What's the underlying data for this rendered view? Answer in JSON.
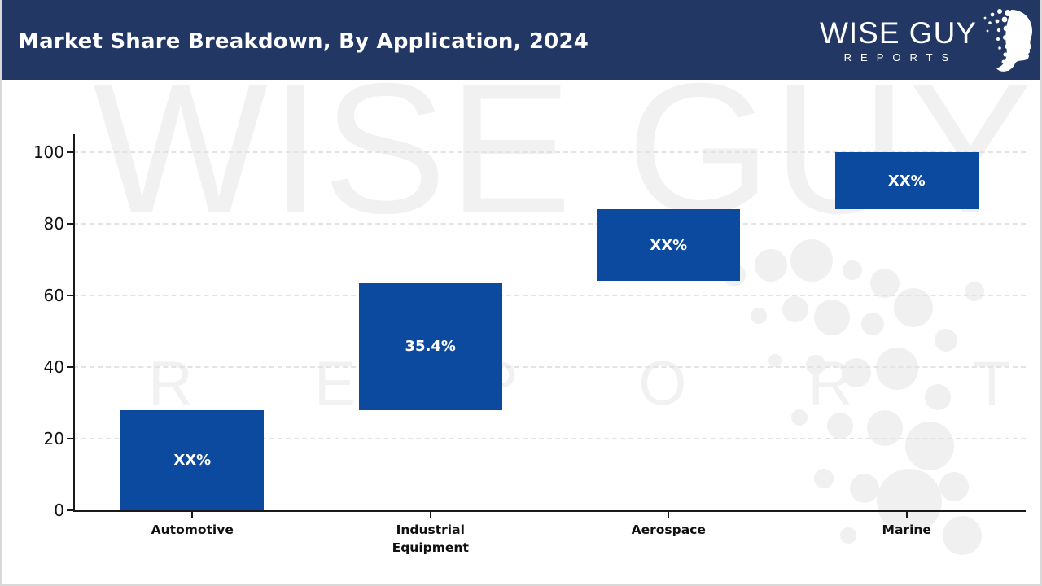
{
  "header": {
    "title": "Market Share Breakdown, By Application, 2024",
    "logo": {
      "line1": "WISE GUY",
      "line2": "REPORTS"
    },
    "bg_color": "#233764"
  },
  "watermark": {
    "line1": "WISE GUY",
    "line2": "R E P O R T S"
  },
  "chart_data": {
    "type": "bar",
    "subtype": "floating-waterfall",
    "title": "Market Share Breakdown, By Application, 2024",
    "categories": [
      "Automotive",
      "Industrial\nEquipment",
      "Aerospace",
      "Marine"
    ],
    "bars": [
      {
        "category": "Automotive",
        "start": 0,
        "end": 28,
        "label": "XX%"
      },
      {
        "category": "Industrial\nEquipment",
        "start": 28,
        "end": 63.4,
        "label": "35.4%"
      },
      {
        "category": "Aerospace",
        "start": 64,
        "end": 84,
        "label": "XX%"
      },
      {
        "category": "Marine",
        "start": 84,
        "end": 100,
        "label": "XX%"
      }
    ],
    "xlabel": "",
    "ylabel": "",
    "ylim": [
      0,
      100
    ],
    "yticks": [
      0,
      20,
      40,
      60,
      80,
      100
    ],
    "grid": "horizontal-dashed",
    "legend": "none",
    "colors": {
      "bar": "#0b4a9e",
      "header_bg": "#233764",
      "axis": "#1a1a1a",
      "gridline": "#e3e3e3",
      "watermark": "#f1f1f1",
      "bar_label_text": "#ffffff"
    }
  }
}
